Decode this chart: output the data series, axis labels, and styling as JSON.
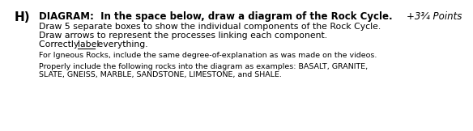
{
  "label_H": "H)",
  "title_bold": "DIAGRAM:  In the space below, draw a diagram of the Rock Cycle.",
  "points": "+3¾ Points",
  "bullet1": "Draw 5 separate boxes to show the individual components of the Rock Cycle.",
  "bullet2": "Draw arrows to represent the processes linking each component.",
  "correctly": "Correctly ",
  "label_word": "label",
  "everything": " everything.",
  "note1": "For Igneous Rocks, include the same degree-of-explanation as was made on the videos.",
  "note2": "Properly include the following rocks into the diagram as examples: BASALT, GRANITE,",
  "note3": "SLATE, GNEISS, MARBLE, SANDSTONE, LIMESTONE, and SHALE.",
  "bg_color": "#ffffff",
  "text_color": "#000000"
}
